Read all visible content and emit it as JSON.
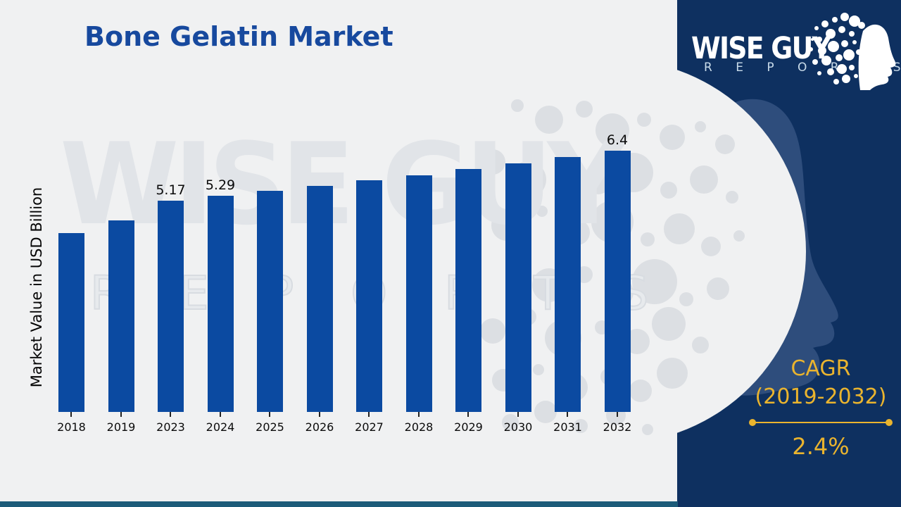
{
  "header": {
    "title": "Bone Gelatin Market"
  },
  "logo": {
    "line1": "WISE GUY",
    "line2": "R E P O R T S",
    "head_icon": "face-profile-dots-icon"
  },
  "watermark": {
    "line1": "WISE GUY",
    "line2": "R E P O R T S"
  },
  "chart": {
    "y_axis_label": "Market Value in USD Billion"
  },
  "chart_data": {
    "type": "bar",
    "title": "Bone Gelatin Market",
    "xlabel": "",
    "ylabel": "Market Value in USD Billion",
    "categories": [
      "2018",
      "2019",
      "2023",
      "2024",
      "2025",
      "2026",
      "2027",
      "2028",
      "2029",
      "2030",
      "2031",
      "2032"
    ],
    "values": [
      4.38,
      4.69,
      5.17,
      5.29,
      5.42,
      5.54,
      5.68,
      5.8,
      5.95,
      6.09,
      6.24,
      6.4
    ],
    "data_labels": [
      "",
      "",
      "5.17",
      "5.29",
      "",
      "",
      "",
      "",
      "",
      "",
      "",
      "6.4"
    ],
    "ylim": [
      0,
      7.5
    ],
    "grid": "off",
    "legend": "none",
    "bar_color": "#0b4aa1",
    "label_color": "#0b0b0b"
  },
  "cagr": {
    "label": "CAGR",
    "range": "(2019-2032)",
    "value": "2.4%"
  },
  "colors": {
    "background": "#f0f1f2",
    "title_blue": "#17499e",
    "bar_blue": "#0b4aa1",
    "panel_navy": "#0e3060",
    "face_navy": "#2e4d7c",
    "gold": "#eab42e",
    "strip_teal": "#1c5b79",
    "watermark_gray": "#dcdfe3"
  }
}
